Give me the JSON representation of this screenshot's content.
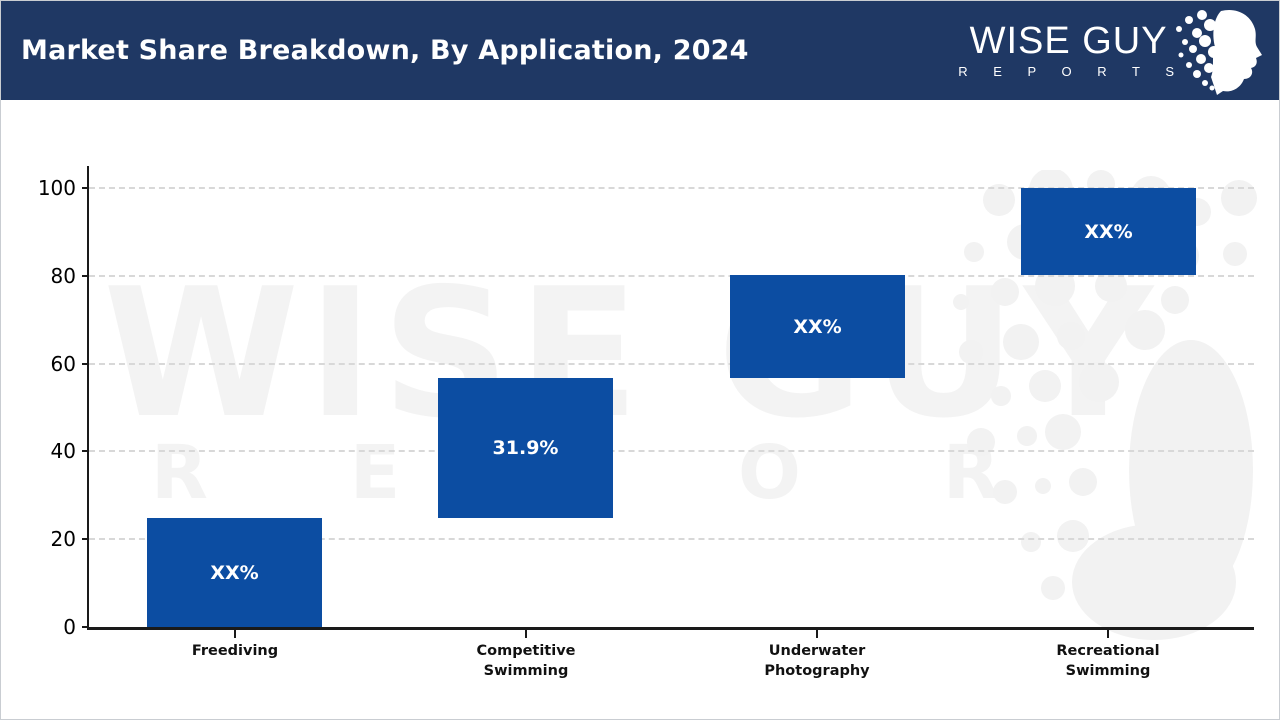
{
  "header": {
    "title": "Market Share Breakdown, By Application, 2024",
    "logo": {
      "line1": "WISE GUY",
      "line2": "R E P O R T S"
    }
  },
  "watermark": {
    "line1": "WISE GUY",
    "line2": "R E P O R T S"
  },
  "colors": {
    "header_bg": "#1F3864",
    "bar_fill": "#0C4DA2",
    "bar_label_text": "#FFFFFF",
    "grid_line": "#D8D8D8",
    "axis_line": "#1A1A1A",
    "tick_text": "#000000",
    "watermark": "#F3F3F3"
  },
  "chart_data": {
    "type": "bar",
    "subtype": "floating-waterfall",
    "title": "Market Share Breakdown, By Application, 2024",
    "unit": "%",
    "categories": [
      "Freediving",
      "Competitive Swimming",
      "Underwater Photography",
      "Recreational Swimming"
    ],
    "segments": [
      {
        "category": "Freediving",
        "label": "XX%",
        "start": 0,
        "end": 24.8
      },
      {
        "category": "Competitive Swimming",
        "label": "31.9%",
        "start": 24.8,
        "end": 56.7
      },
      {
        "category": "Underwater Photography",
        "label": "XX%",
        "start": 56.7,
        "end": 80.2
      },
      {
        "category": "Recreational Swimming",
        "label": "XX%",
        "start": 80.2,
        "end": 100
      }
    ],
    "yticks": [
      0,
      20,
      40,
      60,
      80,
      100
    ],
    "ylim": [
      0,
      105
    ],
    "xlabel": "",
    "ylabel": "",
    "grid": "horizontal-dashed",
    "legend": "none"
  }
}
